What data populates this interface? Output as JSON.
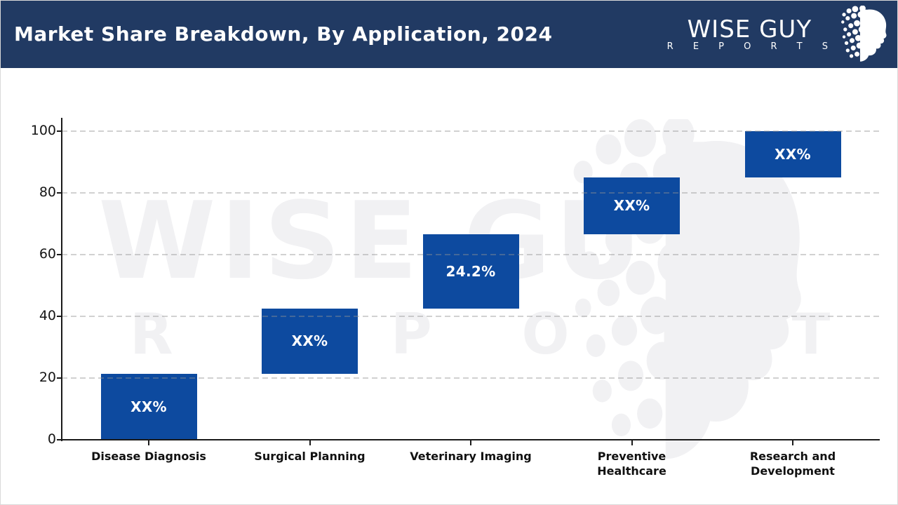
{
  "header": {
    "title": "Market Share Breakdown, By Application, 2024",
    "bg_color": "#213a63",
    "brand": {
      "line1": "WISE GUY",
      "line2": "R E P O R T S"
    }
  },
  "watermark": {
    "line1": "WISE GUY",
    "line2": "R E P O R T S"
  },
  "chart_data": {
    "type": "bar",
    "subtype": "floating-waterfall",
    "title": "Market Share Breakdown, By Application, 2024",
    "categories": [
      "Disease Diagnosis",
      "Surgical Planning",
      "Veterinary Imaging",
      "Preventive Healthcare",
      "Research and Development"
    ],
    "segments": [
      {
        "category": "Disease Diagnosis",
        "start": 0,
        "end": 21.4,
        "label": "XX%"
      },
      {
        "category": "Surgical Planning",
        "start": 21.4,
        "end": 42.5,
        "label": "XX%"
      },
      {
        "category": "Veterinary Imaging",
        "start": 42.5,
        "end": 66.7,
        "label": "24.2%"
      },
      {
        "category": "Preventive Healthcare",
        "start": 66.7,
        "end": 85.1,
        "label": "XX%"
      },
      {
        "category": "Research and Development",
        "start": 85.1,
        "end": 100,
        "label": "XX%"
      }
    ],
    "yticks": [
      0,
      20,
      40,
      60,
      80,
      100
    ],
    "ylim": [
      0,
      105
    ],
    "xlabel": "",
    "ylabel": "",
    "grid": true,
    "grid_style": "dashed",
    "bar_color": "#0d4a9f",
    "bar_label_color": "#ffffff",
    "axis_color": "#1a1a1a",
    "legend": "none"
  }
}
